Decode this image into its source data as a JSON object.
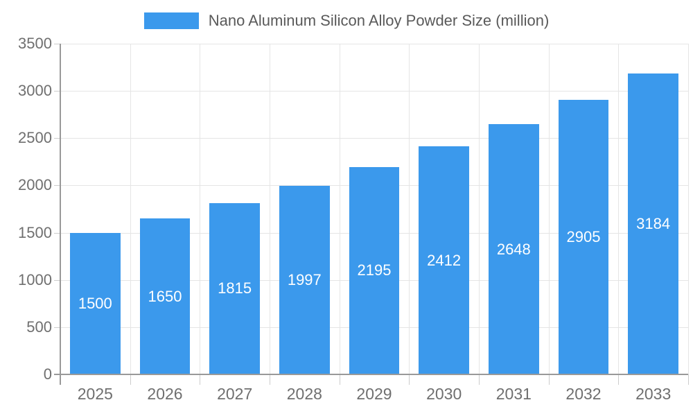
{
  "chart_data": {
    "type": "bar",
    "title": "Nano Aluminum Silicon Alloy Powder Size (million)",
    "legend_entries": [
      "Nano Aluminum Silicon Alloy Powder Size (million)"
    ],
    "legend_position": "top-center",
    "categories": [
      "2025",
      "2026",
      "2027",
      "2028",
      "2029",
      "2030",
      "2031",
      "2032",
      "2033"
    ],
    "values": [
      1500,
      1650,
      1815,
      1997,
      2195,
      2412,
      2648,
      2905,
      3184
    ],
    "xlabel": "",
    "ylabel": "",
    "ylim": [
      0,
      3500
    ],
    "yticks": [
      0,
      500,
      1000,
      1500,
      2000,
      2500,
      3000,
      3500
    ],
    "grid": true,
    "bar_labels_shown": true,
    "colors": {
      "bar": "#3B99EC",
      "bar_label": "#FFFFFF",
      "grid_line": "#E5E5E5",
      "tick_line": "#CCCCCC",
      "axis_line": "#999999",
      "axis_label": "#6F6F6F",
      "legend_text": "#595959",
      "background": "#FFFFFF"
    }
  }
}
